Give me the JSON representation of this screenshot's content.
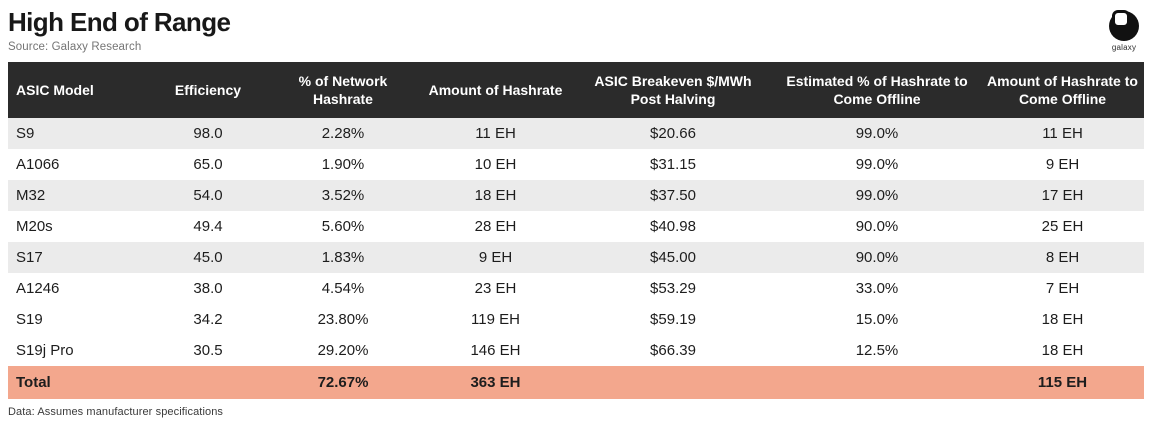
{
  "header": {
    "title": "High End of Range",
    "source": "Source: Galaxy Research",
    "logo_text": "galaxy"
  },
  "footnote": "Data: Assumes manufacturer specifications",
  "colors": {
    "header_bg": "#2B2B2B",
    "header_text": "#FFFFFF",
    "row_shaded_bg": "#EBEBEB",
    "row_plain_bg": "#FFFFFF",
    "total_row_bg": "#F3A78D",
    "body_text": "#1D1D1D",
    "source_text": "#757575"
  },
  "chart_data": {
    "type": "table",
    "title": "High End of Range",
    "source": "Source: Galaxy Research",
    "footnote": "Data: Assumes manufacturer specifications",
    "columns": [
      "ASIC Model",
      "Efficiency",
      "% of Network Hashrate",
      "Amount of Hashrate",
      "ASIC Breakeven $/MWh Post Halving",
      "Estimated % of Hashrate to Come Offline",
      "Amount of Hashrate to Come Offline"
    ],
    "rows": [
      {
        "cells": [
          "S9",
          "98.0",
          "2.28%",
          "11 EH",
          "$20.66",
          "99.0%",
          "11 EH"
        ],
        "shaded": true
      },
      {
        "cells": [
          "A1066",
          "65.0",
          "1.90%",
          "10 EH",
          "$31.15",
          "99.0%",
          "9 EH"
        ],
        "shaded": false
      },
      {
        "cells": [
          "M32",
          "54.0",
          "3.52%",
          "18 EH",
          "$37.50",
          "99.0%",
          "17 EH"
        ],
        "shaded": true
      },
      {
        "cells": [
          "M20s",
          "49.4",
          "5.60%",
          "28 EH",
          "$40.98",
          "90.0%",
          "25 EH"
        ],
        "shaded": false
      },
      {
        "cells": [
          "S17",
          "45.0",
          "1.83%",
          "9 EH",
          "$45.00",
          "90.0%",
          "8 EH"
        ],
        "shaded": true
      },
      {
        "cells": [
          "A1246",
          "38.0",
          "4.54%",
          "23 EH",
          "$53.29",
          "33.0%",
          "7 EH"
        ],
        "shaded": false
      },
      {
        "cells": [
          "S19",
          "34.2",
          "23.80%",
          "119 EH",
          "$59.19",
          "15.0%",
          "18 EH"
        ],
        "shaded": false
      },
      {
        "cells": [
          "S19j Pro",
          "30.5",
          "29.20%",
          "146 EH",
          "$66.39",
          "12.5%",
          "18 EH"
        ],
        "shaded": false
      }
    ],
    "total_row": {
      "cells": [
        "Total",
        "",
        "72.67%",
        "363 EH",
        "",
        "",
        "115 EH"
      ]
    }
  }
}
